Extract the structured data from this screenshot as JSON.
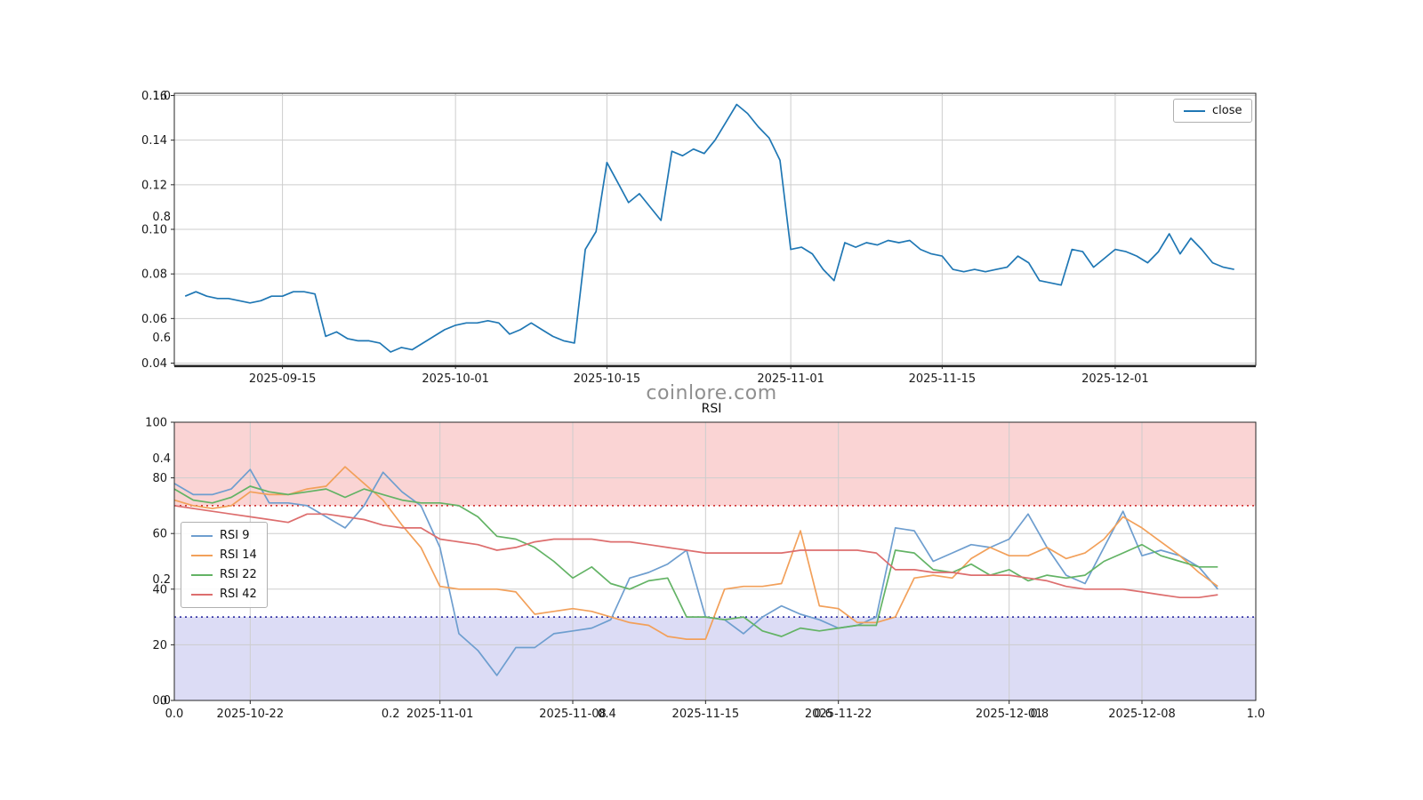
{
  "watermark": "coinlore.com",
  "colors": {
    "background": "#ffffff",
    "grid": "#cdcdcd",
    "spine": "#262626",
    "text": "#1a1a1a",
    "watermark": "#8f8f8f"
  },
  "twin_axis": {
    "x_labels": [
      "0.0",
      "0.2",
      "0.4",
      "0.6",
      "0.8",
      "1.0"
    ],
    "y_labels": [
      "1.0",
      "0.8",
      "0.6",
      "0.4",
      "0.2",
      "0.0"
    ]
  },
  "chart_data": [
    {
      "type": "line",
      "name": "close-price-panel",
      "title": "",
      "x_domain_days": 100,
      "x_data_start_day": 1,
      "x_start_date": "2025-09-06",
      "x_end_date": "2025-12-12",
      "ylim": [
        0.039,
        0.161
      ],
      "y_ticks": [
        {
          "label": "0.04",
          "v": 0.04
        },
        {
          "label": "0.06",
          "v": 0.06
        },
        {
          "label": "0.08",
          "v": 0.08
        },
        {
          "label": "0.10",
          "v": 0.1
        },
        {
          "label": "0.12",
          "v": 0.12
        },
        {
          "label": "0.14",
          "v": 0.14
        },
        {
          "label": "0.16",
          "v": 0.16
        }
      ],
      "x_ticks": [
        {
          "label": "2025-09-15",
          "d": 10
        },
        {
          "label": "2025-10-01",
          "d": 26
        },
        {
          "label": "2025-10-15",
          "d": 40
        },
        {
          "label": "2025-11-01",
          "d": 57
        },
        {
          "label": "2025-11-15",
          "d": 71
        },
        {
          "label": "2025-12-01",
          "d": 87
        }
      ],
      "series": [
        {
          "label": "close",
          "color": "#1f77b4",
          "values": [
            0.07,
            0.072,
            0.07,
            0.069,
            0.069,
            0.068,
            0.067,
            0.068,
            0.07,
            0.07,
            0.072,
            0.072,
            0.071,
            0.052,
            0.054,
            0.051,
            0.05,
            0.05,
            0.049,
            0.045,
            0.047,
            0.046,
            0.049,
            0.052,
            0.055,
            0.057,
            0.058,
            0.058,
            0.059,
            0.058,
            0.053,
            0.055,
            0.058,
            0.055,
            0.052,
            0.05,
            0.049,
            0.091,
            0.099,
            0.13,
            0.121,
            0.112,
            0.116,
            0.11,
            0.104,
            0.135,
            0.133,
            0.136,
            0.134,
            0.14,
            0.148,
            0.156,
            0.152,
            0.146,
            0.141,
            0.131,
            0.091,
            0.092,
            0.089,
            0.082,
            0.077,
            0.094,
            0.092,
            0.094,
            0.093,
            0.095,
            0.094,
            0.095,
            0.091,
            0.089,
            0.088,
            0.082,
            0.081,
            0.082,
            0.081,
            0.082,
            0.083,
            0.088,
            0.085,
            0.077,
            0.076,
            0.075,
            0.091,
            0.09,
            0.083,
            0.087,
            0.091,
            0.09,
            0.088,
            0.085,
            0.09,
            0.098,
            0.089,
            0.096,
            0.091,
            0.085,
            0.083,
            0.082
          ]
        }
      ]
    },
    {
      "type": "line",
      "name": "rsi-panel",
      "title": "RSI",
      "x_domain_days": 57,
      "x_data_start_day": 0,
      "x_start_date": "2025-10-18",
      "x_end_date": "2025-12-12",
      "ylim": [
        0,
        100
      ],
      "bands": [
        {
          "from": 70,
          "to": 100,
          "color": "#fad4d4",
          "name": "overbought-band"
        },
        {
          "from": 0,
          "to": 30,
          "color": "#dcdcf5",
          "name": "oversold-band"
        }
      ],
      "ref_lines": [
        {
          "v": 70,
          "color": "#cc2222",
          "name": "overbought-threshold"
        },
        {
          "v": 30,
          "color": "#1a1a99",
          "name": "oversold-threshold"
        }
      ],
      "y_ticks": [
        {
          "label": "0",
          "v": 0
        },
        {
          "label": "20",
          "v": 20
        },
        {
          "label": "40",
          "v": 40
        },
        {
          "label": "60",
          "v": 60
        },
        {
          "label": "80",
          "v": 80
        },
        {
          "label": "100",
          "v": 100
        }
      ],
      "x_ticks": [
        {
          "label": "2025-10-22",
          "d": 4
        },
        {
          "label": "2025-11-01",
          "d": 14
        },
        {
          "label": "2025-11-08",
          "d": 21
        },
        {
          "label": "2025-11-15",
          "d": 28
        },
        {
          "label": "2025-11-22",
          "d": 35
        },
        {
          "label": "2025-12-01",
          "d": 44
        },
        {
          "label": "2025-12-08",
          "d": 51
        }
      ],
      "series": [
        {
          "label": "RSI 9",
          "color": "#6e9ecf",
          "values": [
            78,
            74,
            74,
            76,
            83,
            71,
            71,
            70,
            66,
            62,
            70,
            82,
            75,
            70,
            55,
            24,
            18,
            9,
            19,
            19,
            24,
            25,
            26,
            29,
            44,
            46,
            49,
            54,
            30,
            29,
            24,
            30,
            34,
            31,
            29,
            26,
            27,
            30,
            62,
            61,
            50,
            53,
            56,
            55,
            58,
            67,
            55,
            45,
            42,
            55,
            68,
            52,
            54,
            52,
            48,
            40
          ]
        },
        {
          "label": "RSI 14",
          "color": "#f2a05a",
          "values": [
            72,
            70,
            69,
            70,
            75,
            74,
            74,
            76,
            77,
            84,
            78,
            72,
            63,
            55,
            41,
            40,
            40,
            40,
            39,
            31,
            32,
            33,
            32,
            30,
            28,
            27,
            23,
            22,
            22,
            40,
            41,
            41,
            42,
            61,
            34,
            33,
            28,
            28,
            30,
            44,
            45,
            44,
            51,
            55,
            52,
            52,
            55,
            51,
            53,
            58,
            66,
            62,
            57,
            52,
            46,
            41
          ]
        },
        {
          "label": "RSI 22",
          "color": "#63b365",
          "values": [
            76,
            72,
            71,
            73,
            77,
            75,
            74,
            75,
            76,
            73,
            76,
            74,
            72,
            71,
            71,
            70,
            66,
            59,
            58,
            55,
            50,
            44,
            48,
            42,
            40,
            43,
            44,
            30,
            30,
            29,
            30,
            25,
            23,
            26,
            25,
            26,
            27,
            27,
            54,
            53,
            47,
            46,
            49,
            45,
            47,
            43,
            45,
            44,
            45,
            50,
            53,
            56,
            52,
            50,
            48,
            48
          ]
        },
        {
          "label": "RSI 42",
          "color": "#dd6e6e",
          "values": [
            70,
            69,
            68,
            67,
            66,
            65,
            64,
            67,
            67,
            66,
            65,
            63,
            62,
            62,
            58,
            57,
            56,
            54,
            55,
            57,
            58,
            58,
            58,
            57,
            57,
            56,
            55,
            54,
            53,
            53,
            53,
            53,
            53,
            54,
            54,
            54,
            54,
            53,
            47,
            47,
            46,
            46,
            45,
            45,
            45,
            44,
            43,
            41,
            40,
            40,
            40,
            39,
            38,
            37,
            37,
            38
          ]
        }
      ]
    }
  ]
}
